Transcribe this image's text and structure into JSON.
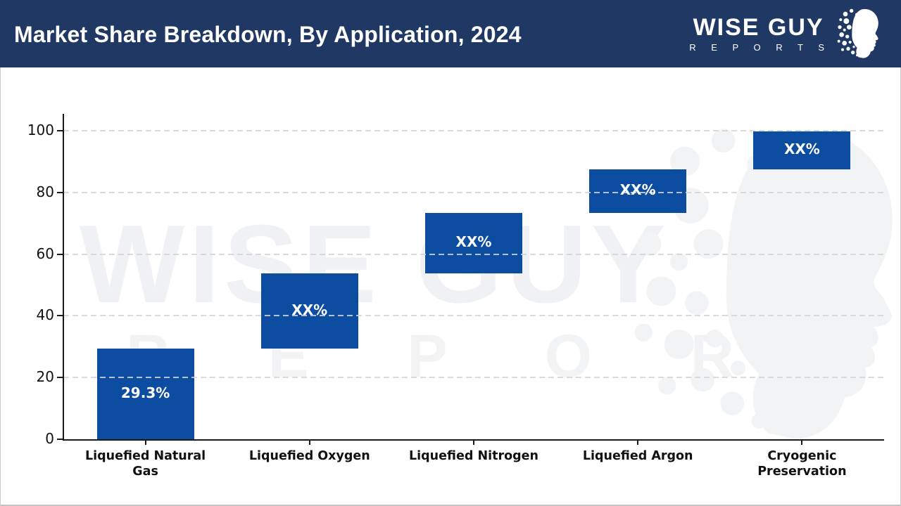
{
  "header": {
    "title": "Market Share Breakdown, By Application, 2024",
    "logo": {
      "brand_line1": "WISE GUY",
      "brand_line2": "R E P O R T S"
    },
    "background_color": "#203864"
  },
  "watermark": {
    "line1": "WISE GUY",
    "line2": "R E P O R T S"
  },
  "chart_data": {
    "type": "bar",
    "subtype": "floating-waterfall-segments",
    "title": "Market Share Breakdown, By Application, 2024",
    "categories": [
      "Liquefied Natural Gas",
      "Liquefied Oxygen",
      "Liquefied Nitrogen",
      "Liquefied Argon",
      "Cryogenic Preservation"
    ],
    "series": [
      {
        "name": "Market share (%)",
        "segments": [
          {
            "category": "Liquefied Natural Gas",
            "start": 0,
            "end": 29.3,
            "label": "29.3%"
          },
          {
            "category": "Liquefied Oxygen",
            "start": 29.3,
            "end": 53.8,
            "label": "XX%"
          },
          {
            "category": "Liquefied Nitrogen",
            "start": 53.8,
            "end": 73.4,
            "label": "XX%"
          },
          {
            "category": "Liquefied Argon",
            "start": 73.4,
            "end": 87.5,
            "label": "XX%"
          },
          {
            "category": "Cryogenic Preservation",
            "start": 87.5,
            "end": 99.8,
            "label": "XX%"
          }
        ]
      }
    ],
    "xlabel": "",
    "ylabel": "",
    "yticks": [
      0,
      20,
      40,
      60,
      80,
      100
    ],
    "ylim": [
      0,
      105
    ],
    "grid": {
      "horizontal": true,
      "style": "dashed",
      "above_bars": true
    },
    "legend": "none",
    "colors": {
      "bar": "#0c4da2",
      "bar_label": "#ffffff",
      "grid": "#d4d4d4",
      "axis": "#1a1a1a",
      "tick_label": "#111111"
    }
  }
}
